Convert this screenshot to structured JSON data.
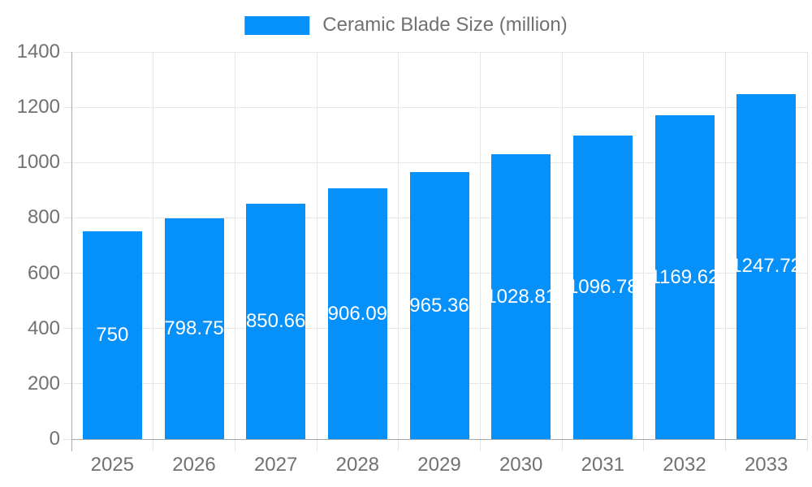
{
  "chart_data": {
    "type": "bar",
    "title": "",
    "series_name": "Ceramic Blade Size (million)",
    "categories": [
      "2025",
      "2026",
      "2027",
      "2028",
      "2029",
      "2030",
      "2031",
      "2032",
      "2033"
    ],
    "series": [
      {
        "name": "Ceramic Blade Size (million)",
        "values": [
          750,
          798.75,
          850.66,
          906.09,
          965.36,
          1028.81,
          1096.78,
          1169.62,
          1247.72
        ],
        "data_labels": [
          "750",
          "798.75",
          "850.66",
          "906.09",
          "965.36",
          "1028.81",
          "1096.78",
          "1169.62",
          "1247.72"
        ]
      }
    ],
    "xlabel": "",
    "ylabel": "",
    "ylim": [
      0,
      1400
    ],
    "yticks": [
      0,
      200,
      400,
      600,
      800,
      1000,
      1200,
      1400
    ],
    "grid": true,
    "legend_position": "top",
    "colors": {
      "bar": "#0690fa",
      "grid": "#e6e6e6",
      "axis": "#a9a9a9",
      "tick_text": "#717171",
      "data_label_text": "#ffffff",
      "background": "#ffffff"
    }
  }
}
